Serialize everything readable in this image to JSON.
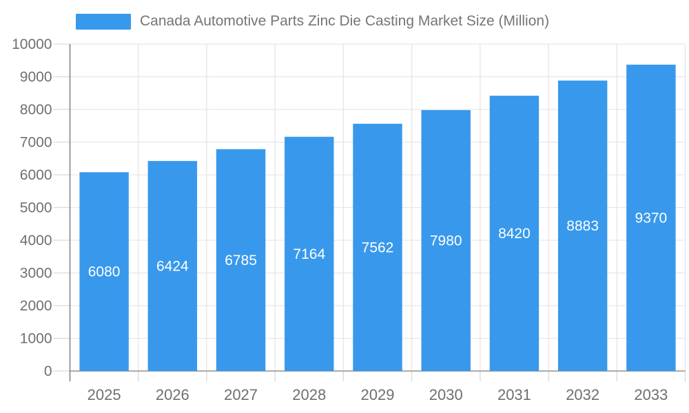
{
  "legend": {
    "items": [
      {
        "label": "Canada Automotive Parts Zinc Die Casting Market Size (Million)",
        "swatch_color": "#3899EC"
      }
    ],
    "position": "top"
  },
  "chart_data": {
    "type": "bar",
    "title": "Canada Automotive Parts Zinc Die Casting Market Size (Million)",
    "categories": [
      "2025",
      "2026",
      "2027",
      "2028",
      "2029",
      "2030",
      "2031",
      "2032",
      "2033"
    ],
    "values": [
      6080,
      6424,
      6785,
      7164,
      7562,
      7980,
      8420,
      8883,
      9370
    ],
    "xlabel": "",
    "ylabel": "",
    "ylim": [
      0,
      10000
    ],
    "ytick_step": 1000,
    "grid": true,
    "legend_position": "top",
    "colors": {
      "bar": "#3899EC",
      "value_label": "#ffffff",
      "axis_line": "#9a9a9a",
      "baseline": "#ababab",
      "grid_line": "#e6e6e6",
      "tick_line": "#d9d9d9",
      "tick_label": "#6f6f6f",
      "legend_text": "#757575",
      "background": "#ffffff"
    }
  }
}
